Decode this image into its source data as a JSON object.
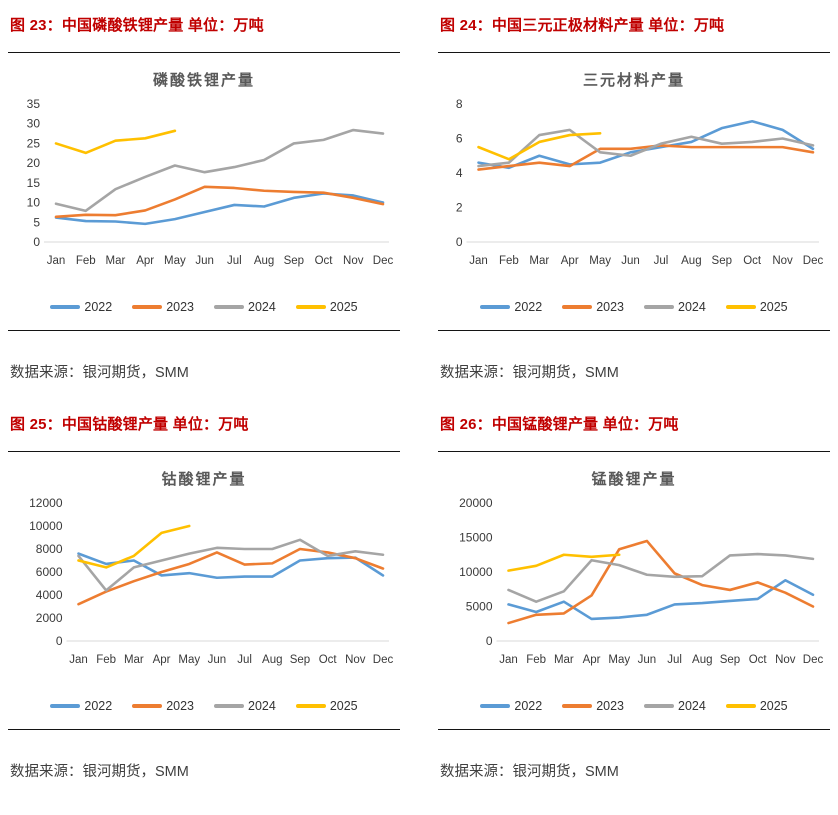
{
  "page": {
    "background": "#ffffff"
  },
  "colors": {
    "caption": "#C00000",
    "axis_text": "#3a3a3a",
    "axis_line": "#D9D9D9",
    "series_2022": "#5B9BD5",
    "series_2023": "#ED7D31",
    "series_2024": "#A5A5A5",
    "series_2025": "#FFC000"
  },
  "figures": [
    {
      "caption": "图 23：中国磷酸铁锂产量  单位：万吨",
      "source": "数据来源：银河期货，SMM"
    },
    {
      "caption": "图 24：中国三元正极材料产量  单位：万吨",
      "source": "数据来源：银河期货，SMM"
    },
    {
      "caption": "图 25：中国钴酸锂产量  单位：万吨",
      "source": "数据来源：银河期货，SMM"
    },
    {
      "caption": "图 26：中国锰酸锂产量  单位：万吨",
      "source": "数据来源：银河期货，SMM"
    }
  ],
  "chart_data": [
    {
      "type": "line",
      "title": "磷酸铁锂产量",
      "xlabel": "",
      "ylabel": "",
      "categories": [
        "Jan",
        "Feb",
        "Mar",
        "Apr",
        "May",
        "Jun",
        "Jul",
        "Aug",
        "Sep",
        "Oct",
        "Nov",
        "Dec"
      ],
      "series": [
        {
          "name": "2022",
          "color": "#5B9BD5",
          "values": [
            6.2,
            5.3,
            5.2,
            4.6,
            5.8,
            7.6,
            9.4,
            9.0,
            11.2,
            12.3,
            11.8,
            10.0
          ]
        },
        {
          "name": "2023",
          "color": "#ED7D31",
          "values": [
            6.4,
            6.9,
            6.8,
            8.0,
            10.8,
            14.0,
            13.7,
            13.0,
            12.7,
            12.5,
            11.2,
            9.6
          ]
        },
        {
          "name": "2024",
          "color": "#A5A5A5",
          "values": [
            9.7,
            7.9,
            13.4,
            16.5,
            19.4,
            17.7,
            19.0,
            20.8,
            25.0,
            25.9,
            28.4,
            27.5
          ]
        },
        {
          "name": "2025",
          "color": "#FFC000",
          "values": [
            25.0,
            22.6,
            25.7,
            26.3,
            28.2
          ]
        }
      ],
      "ylim": [
        0,
        35
      ],
      "ytick_step": 5,
      "grid": false,
      "legend_position": "bottom"
    },
    {
      "type": "line",
      "title": "三元材料产量",
      "xlabel": "",
      "ylabel": "",
      "categories": [
        "Jan",
        "Feb",
        "Mar",
        "Apr",
        "May",
        "Jun",
        "Jul",
        "Aug",
        "Sep",
        "Oct",
        "Nov",
        "Dec"
      ],
      "series": [
        {
          "name": "2022",
          "color": "#5B9BD5",
          "values": [
            4.6,
            4.3,
            5.0,
            4.5,
            4.6,
            5.2,
            5.5,
            5.8,
            6.6,
            7.0,
            6.5,
            5.4
          ]
        },
        {
          "name": "2023",
          "color": "#ED7D31",
          "values": [
            4.2,
            4.4,
            4.6,
            4.4,
            5.4,
            5.4,
            5.6,
            5.5,
            5.5,
            5.5,
            5.5,
            5.2
          ]
        },
        {
          "name": "2024",
          "color": "#A5A5A5",
          "values": [
            4.4,
            4.6,
            6.2,
            6.5,
            5.2,
            5.0,
            5.7,
            6.1,
            5.7,
            5.8,
            6.0,
            5.6
          ]
        },
        {
          "name": "2025",
          "color": "#FFC000",
          "values": [
            5.5,
            4.8,
            5.8,
            6.2,
            6.3
          ]
        }
      ],
      "ylim": [
        0,
        8
      ],
      "ytick_step": 2,
      "grid": false,
      "legend_position": "bottom"
    },
    {
      "type": "line",
      "title": "钴酸锂产量",
      "xlabel": "",
      "ylabel": "",
      "categories": [
        "Jan",
        "Feb",
        "Mar",
        "Apr",
        "May",
        "Jun",
        "Jul",
        "Aug",
        "Sep",
        "Oct",
        "Nov",
        "Dec"
      ],
      "series": [
        {
          "name": "2022",
          "color": "#5B9BD5",
          "values": [
            7600,
            6700,
            7000,
            5700,
            5900,
            5500,
            5600,
            5600,
            7000,
            7200,
            7250,
            5700
          ]
        },
        {
          "name": "2023",
          "color": "#ED7D31",
          "values": [
            3200,
            4300,
            5200,
            6000,
            6700,
            7700,
            6650,
            6750,
            8000,
            7700,
            7200,
            6300
          ]
        },
        {
          "name": "2024",
          "color": "#A5A5A5",
          "values": [
            7400,
            4400,
            6400,
            7000,
            7600,
            8100,
            8000,
            8000,
            8800,
            7400,
            7800,
            7500
          ]
        },
        {
          "name": "2025",
          "color": "#FFC000",
          "values": [
            7000,
            6400,
            7400,
            9400,
            10000
          ]
        }
      ],
      "ylim": [
        0,
        12000
      ],
      "ytick_step": 2000,
      "grid": false,
      "legend_position": "bottom"
    },
    {
      "type": "line",
      "title": "锰酸锂产量",
      "xlabel": "",
      "ylabel": "",
      "categories": [
        "Jan",
        "Feb",
        "Mar",
        "Apr",
        "May",
        "Jun",
        "Jul",
        "Aug",
        "Sep",
        "Oct",
        "Nov",
        "Dec"
      ],
      "series": [
        {
          "name": "2022",
          "color": "#5B9BD5",
          "values": [
            5300,
            4200,
            5700,
            3200,
            3400,
            3800,
            5300,
            5500,
            5800,
            6100,
            8800,
            6700
          ]
        },
        {
          "name": "2023",
          "color": "#ED7D31",
          "values": [
            2600,
            3800,
            4000,
            6600,
            13300,
            14500,
            9800,
            8100,
            7400,
            8500,
            7000,
            5000
          ]
        },
        {
          "name": "2024",
          "color": "#A5A5A5",
          "values": [
            7400,
            5700,
            7200,
            11700,
            11000,
            9600,
            9300,
            9400,
            12400,
            12600,
            12400,
            11900
          ]
        },
        {
          "name": "2025",
          "color": "#FFC000",
          "values": [
            10200,
            10900,
            12500,
            12200,
            12500
          ]
        }
      ],
      "ylim": [
        0,
        20000
      ],
      "ytick_step": 5000,
      "grid": false,
      "legend_position": "bottom"
    }
  ]
}
